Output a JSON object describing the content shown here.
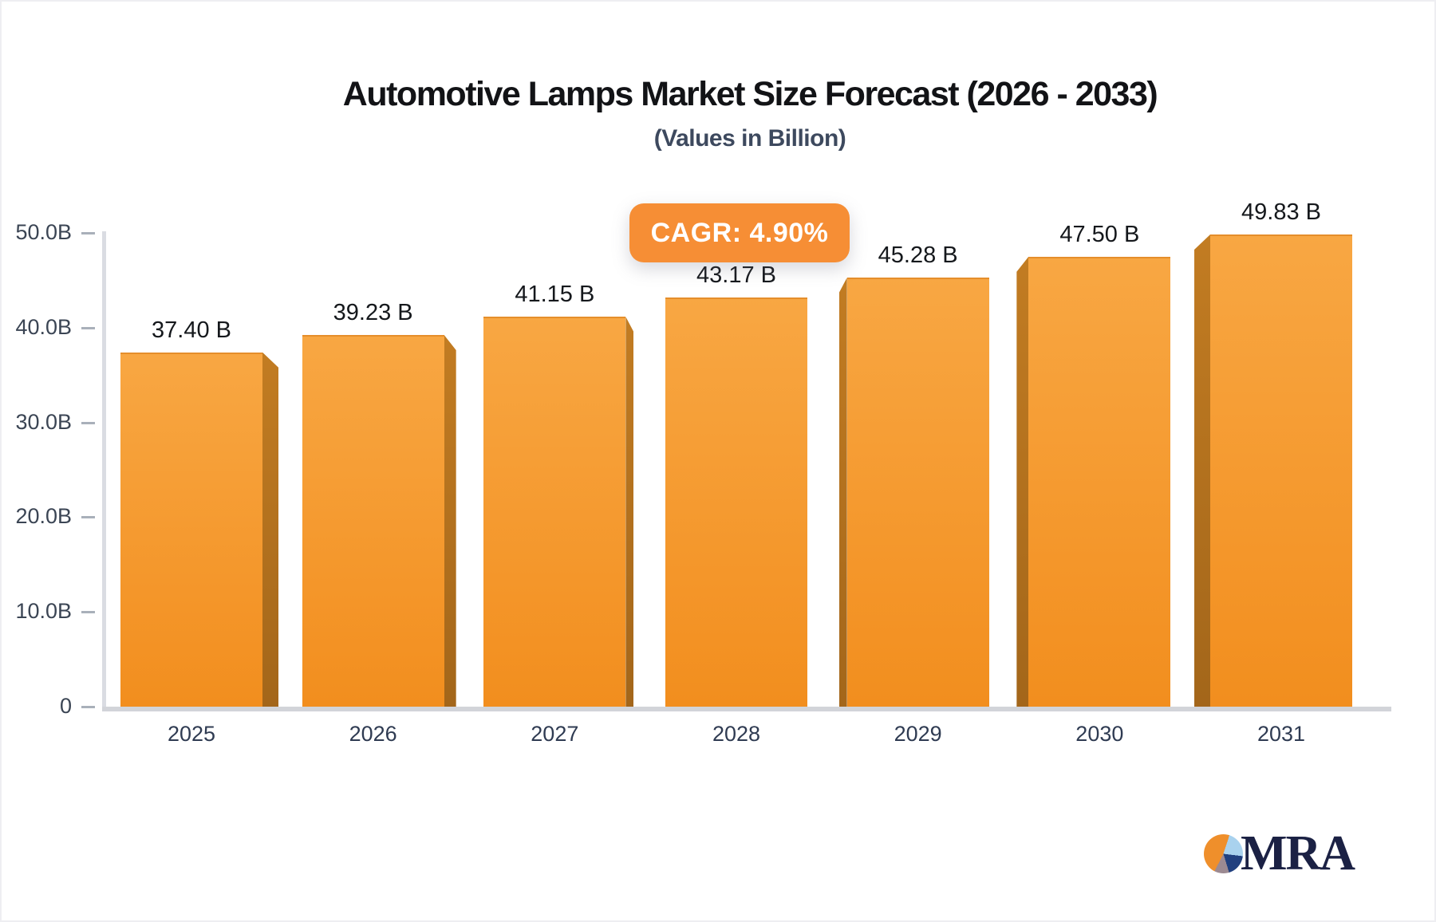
{
  "title": "Automotive Lamps Market Size Forecast (2026 - 2033)",
  "subtitle": "(Values in Billion)",
  "badge": {
    "label": "CAGR: 4.90%",
    "color": "#f68e35"
  },
  "logo": {
    "text": "MRA",
    "pie_colors": {
      "orange": "#ef8f2b",
      "light_blue": "#a9d2ee",
      "navy": "#21407f",
      "mauve": "#9c8a92"
    }
  },
  "chart_data": {
    "type": "bar",
    "title": "Automotive Lamps Market Size Forecast (2026 - 2033)",
    "subtitle": "(Values in Billion)",
    "annotation": "CAGR: 4.90%",
    "categories": [
      "2025",
      "2026",
      "2027",
      "2028",
      "2029",
      "2030",
      "2031"
    ],
    "values": [
      37.4,
      39.23,
      41.15,
      43.17,
      45.28,
      47.5,
      49.83
    ],
    "value_labels": [
      "37.40 B",
      "39.23 B",
      "41.15 B",
      "43.17 B",
      "45.28 B",
      "47.50 B",
      "49.83 B"
    ],
    "y_axis": {
      "range": [
        0,
        50
      ],
      "ticks": [
        {
          "value": 0,
          "label": "0"
        },
        {
          "value": 10,
          "label": "10.0B"
        },
        {
          "value": 20,
          "label": "20.0B"
        },
        {
          "value": 30,
          "label": "30.0B"
        },
        {
          "value": 40,
          "label": "40.0B"
        },
        {
          "value": 50,
          "label": "50.0B"
        }
      ]
    },
    "grid": false,
    "legend": false,
    "style": "3d-bars-center-perspective",
    "colors": {
      "bar_top": "#f8a743",
      "bar_bottom": "#f28e1e",
      "side_top": "#c27c22",
      "side_bottom": "#a3661a"
    }
  }
}
